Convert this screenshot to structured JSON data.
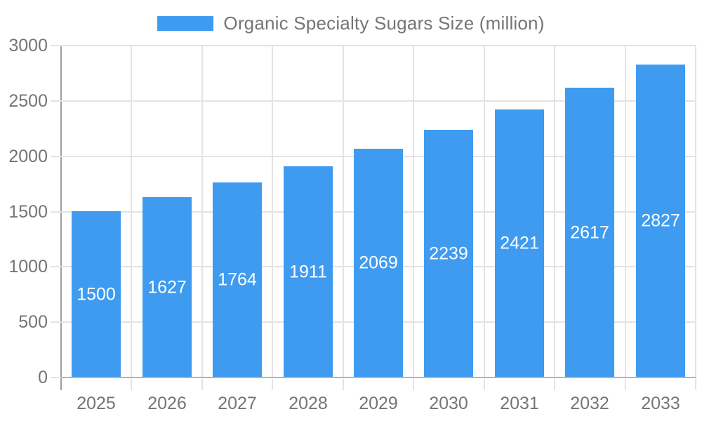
{
  "legend": {
    "label": "Organic Specialty Sugars Size (million)"
  },
  "colors": {
    "bar": "#3e9bf0",
    "legend_text": "#757575",
    "axis_text": "#757575",
    "grid_line": "#e3e3e3",
    "y_axis_line": "#9e9e9e",
    "x_axis_line": "#b3b3b3",
    "value_label_text": "#ffffff",
    "background": "#ffffff"
  },
  "chart_data": {
    "type": "bar",
    "title": "Organic Specialty Sugars Size (million)",
    "categories": [
      "2025",
      "2026",
      "2027",
      "2028",
      "2029",
      "2030",
      "2031",
      "2032",
      "2033"
    ],
    "values": [
      1500,
      1627,
      1764,
      1911,
      2069,
      2239,
      2421,
      2617,
      2827
    ],
    "xlabel": "",
    "ylabel": "",
    "ylim": [
      0,
      3000
    ],
    "ytick_interval": 500,
    "ytick_labels": [
      "0",
      "500",
      "1000",
      "1500",
      "2000",
      "2500",
      "3000"
    ],
    "grid": true,
    "legend_position": "top-center",
    "value_labels": "inside-center-white"
  }
}
